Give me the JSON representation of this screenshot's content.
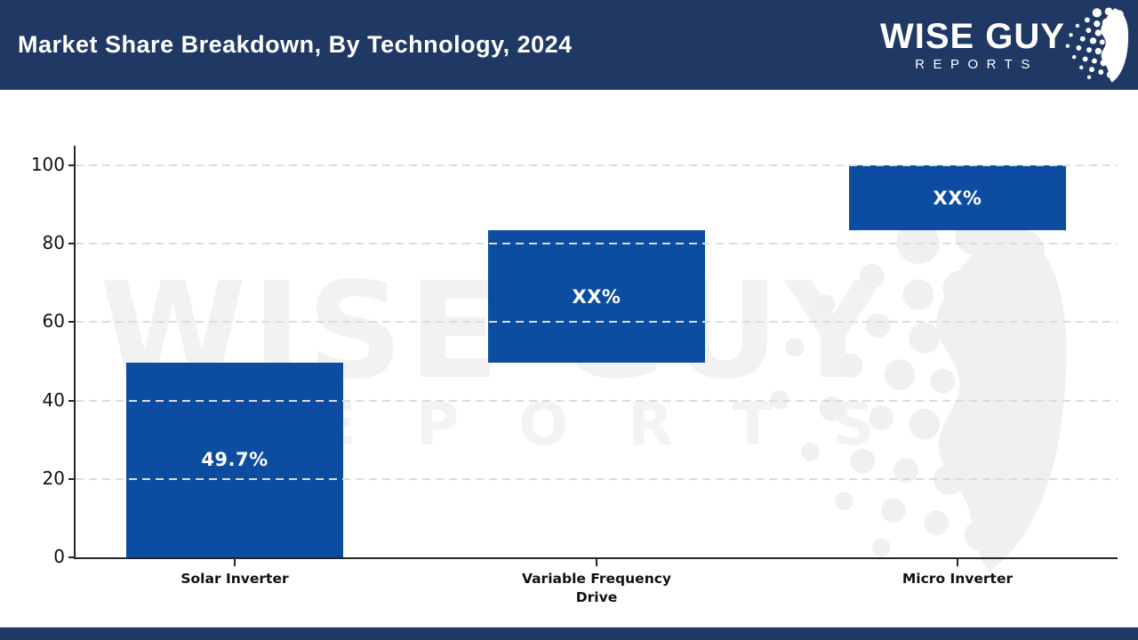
{
  "header": {
    "title": "Market Share Breakdown, By Technology, 2024",
    "logo": {
      "line1": "WISE GUY",
      "line2": "REPORTS"
    }
  },
  "watermark": {
    "line1": "WISE GUY",
    "line2": "R E P O R T S"
  },
  "colors": {
    "header_bg": "#203864",
    "footer_bg": "#203864",
    "bar": "#0c4da2",
    "bar_label": "#ffffff",
    "axis": "#262626",
    "gridline": "#dcdcdc",
    "tick_text": "#111111",
    "watermark": "#f2f2f2"
  },
  "chart_data": {
    "type": "bar",
    "subtype": "waterfall",
    "title": "Market Share Breakdown, By Technology, 2024",
    "categories": [
      "Solar Inverter",
      "Variable Frequency Drive",
      "Micro Inverter"
    ],
    "series": [
      {
        "name": "Market Share (%)",
        "ranges": [
          [
            0,
            49.7
          ],
          [
            49.7,
            83.4
          ],
          [
            83.4,
            100
          ]
        ],
        "segment_sizes": [
          49.7,
          33.7,
          16.6
        ]
      }
    ],
    "bar_labels": [
      "49.7%",
      "XX%",
      "XX%"
    ],
    "xlabel": "",
    "ylabel": "",
    "ylim": [
      0,
      100
    ],
    "yticks": [
      0,
      20,
      40,
      60,
      80,
      100
    ],
    "grid": "horizontal-dashed-over-bars",
    "legend": "none"
  }
}
